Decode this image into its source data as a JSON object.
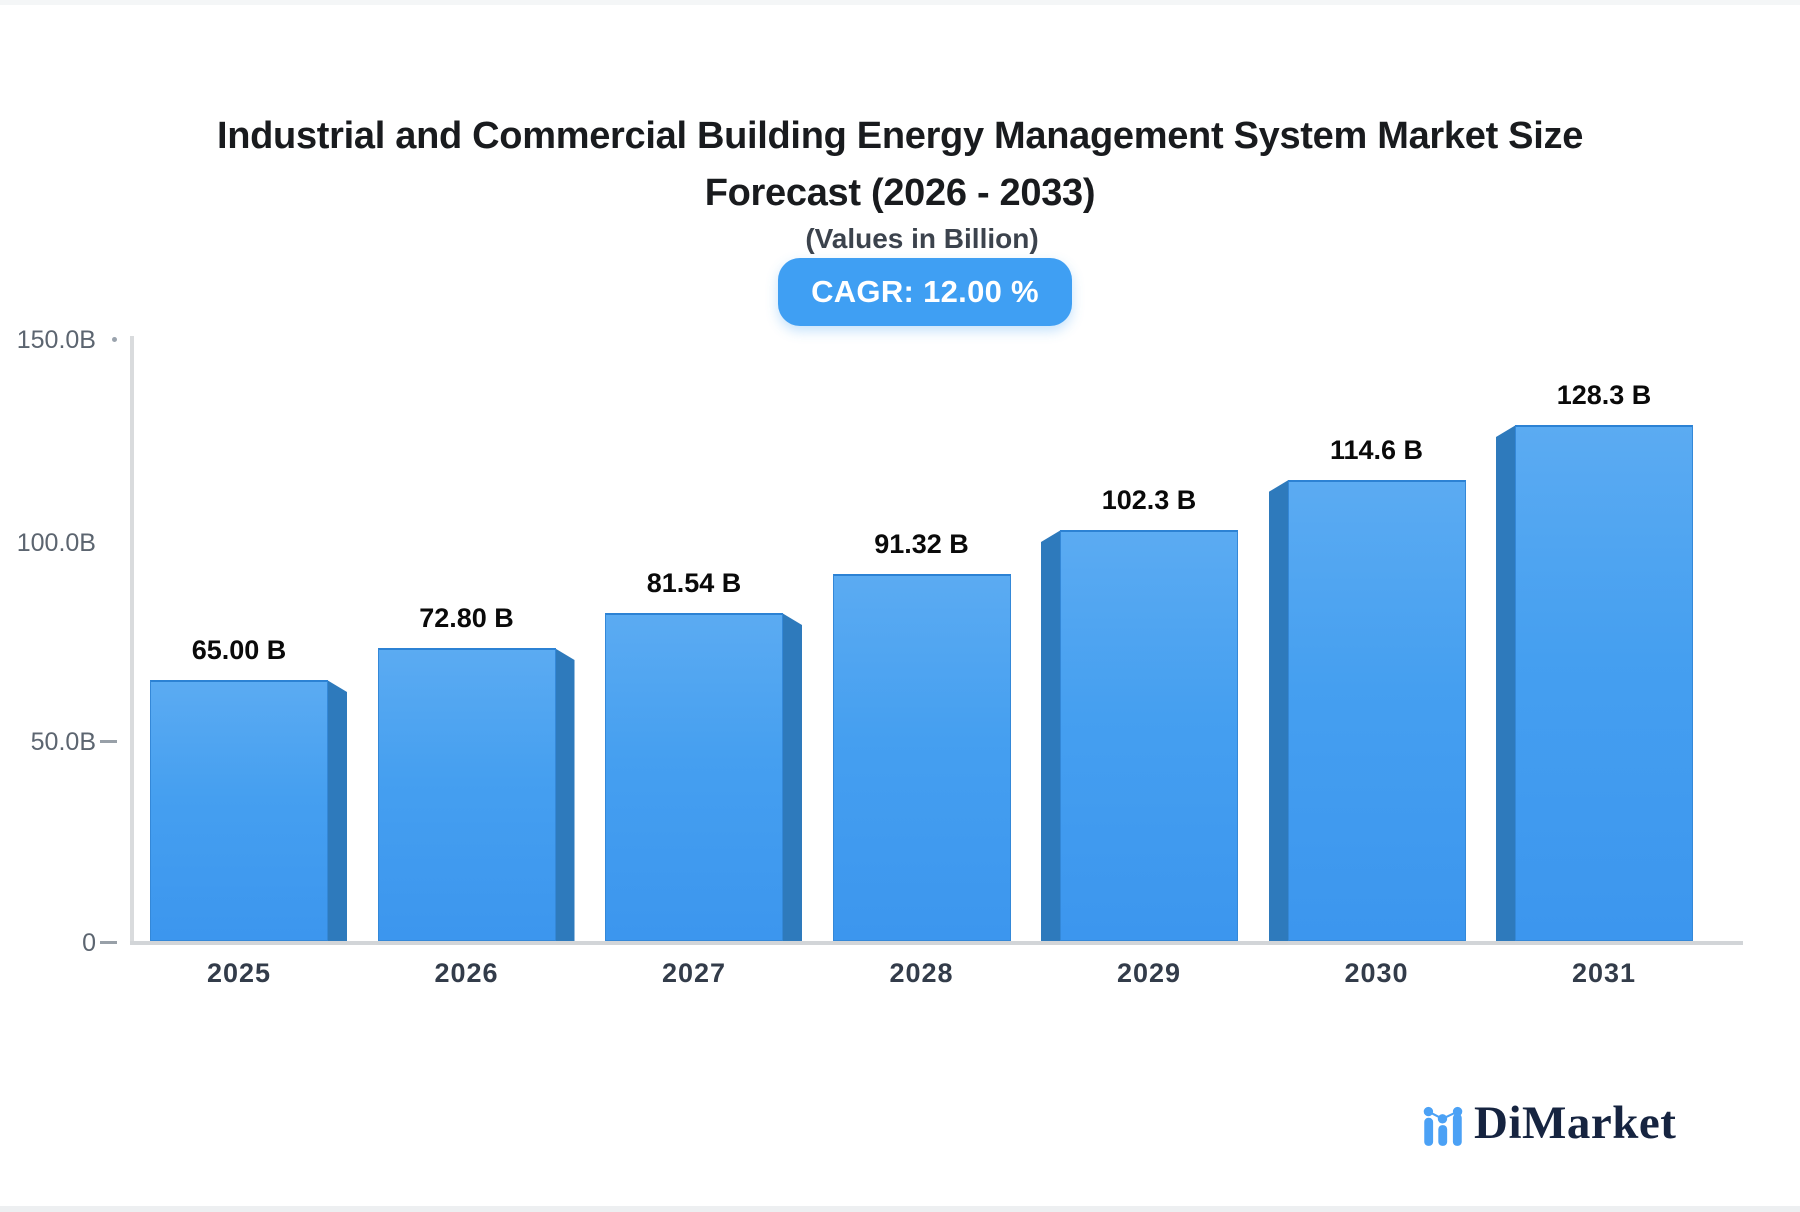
{
  "header": {
    "title_line1": "Industrial and Commercial Building Energy Management System Market Size",
    "title_line2": "Forecast (2026 - 2033)",
    "subtitle": "(Values in Billion)",
    "cagr_badge": "CAGR: 12.00 %"
  },
  "chart_data": {
    "type": "bar",
    "title": "Industrial and Commercial Building Energy Management System Market Size Forecast (2026 - 2033)",
    "subtitle": "(Values in Billion)",
    "cagr_percent": 12.0,
    "categories": [
      "2025",
      "2026",
      "2027",
      "2028",
      "2029",
      "2030",
      "2031"
    ],
    "values": [
      65.0,
      72.8,
      81.54,
      91.32,
      102.3,
      114.6,
      128.3
    ],
    "value_labels": [
      "65.00 B",
      "72.80 B",
      "81.54 B",
      "91.32 B",
      "102.3 B",
      "114.6 B",
      "128.3 B"
    ],
    "ylabel": "",
    "xlabel": "",
    "ylim": [
      0,
      150
    ],
    "y_ticks": [
      "150.0B",
      "100.0B",
      "50.0B",
      "0"
    ],
    "grid": false,
    "legend": false,
    "bar_color": "#3f9df1",
    "bar_side_color": "#2e7abc",
    "badge_color": "#3f9ff3"
  },
  "watermark": {
    "text": "DiMarket",
    "icon": "dimarket-bars-icon",
    "text_color": "#162440",
    "icon_color": "#4ba1f5"
  }
}
